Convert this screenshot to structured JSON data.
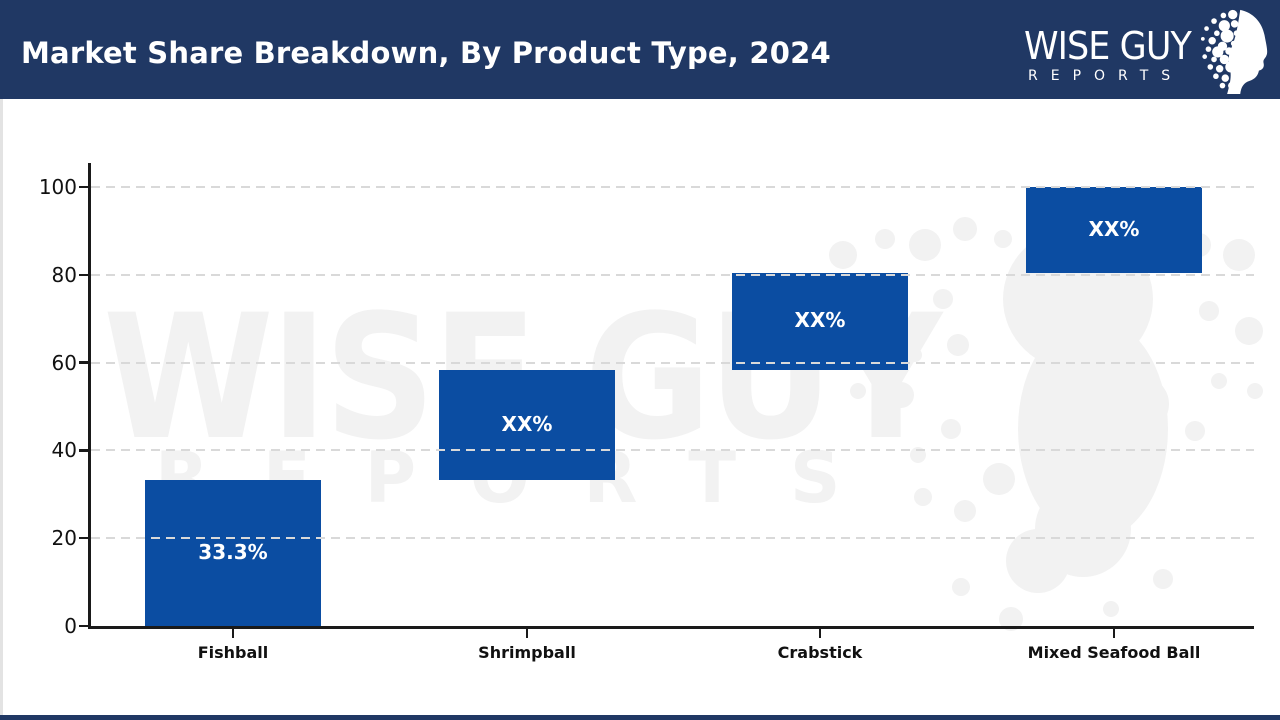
{
  "header": {
    "title": "Market Share Breakdown, By Product Type, 2024",
    "logo": {
      "line1": "WISE GUY",
      "line2": "REPORTS"
    }
  },
  "watermark": {
    "line1": "WISE GUY",
    "line2": "REPORTS"
  },
  "chart_data": {
    "type": "bar",
    "subtype": "stacked-waterfall",
    "title": "Market Share Breakdown, By Product Type, 2024",
    "categories": [
      "Fishball",
      "Shrimpball",
      "Crabstick",
      "Mixed Seafood Ball"
    ],
    "segments": [
      {
        "category": "Fishball",
        "start": 0,
        "end": 33.3,
        "label": "33.3%"
      },
      {
        "category": "Shrimpball",
        "start": 33.3,
        "end": 58.3,
        "label": "XX%"
      },
      {
        "category": "Crabstick",
        "start": 58.3,
        "end": 80.5,
        "label": "XX%"
      },
      {
        "category": "Mixed Seafood Ball",
        "start": 80.5,
        "end": 100,
        "label": "XX%"
      }
    ],
    "xlabel": "",
    "ylabel": "",
    "ylim": [
      0,
      100
    ],
    "yticks": [
      0,
      20,
      40,
      60,
      80,
      100
    ],
    "grid": "horizontal-dashed",
    "legend": "none",
    "colors": {
      "bar": "#0b4da2",
      "bar_label": "#ffffff",
      "axis": "#1a1a1a",
      "grid": "#d9d9d9",
      "tick_label": "#111111",
      "header_bg": "#203864",
      "header_text": "#ffffff",
      "watermark": "#f2f2f2"
    }
  }
}
